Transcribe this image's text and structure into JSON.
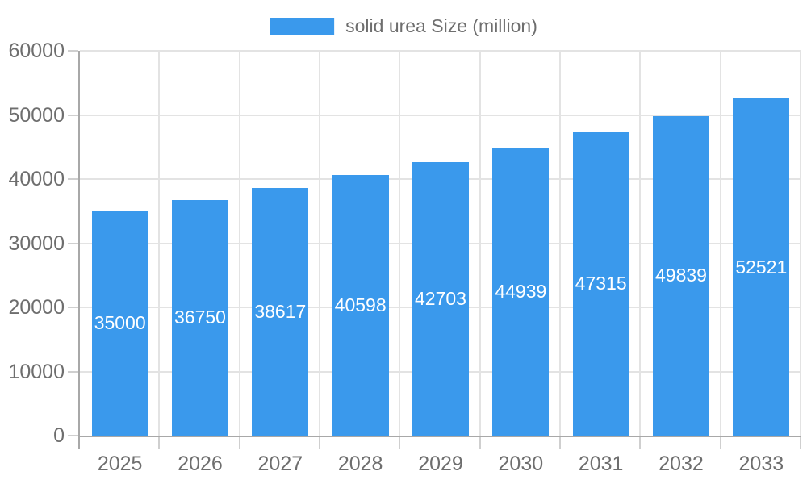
{
  "chart_data": {
    "type": "bar",
    "title": "",
    "categories": [
      "2025",
      "2026",
      "2027",
      "2028",
      "2029",
      "2030",
      "2031",
      "2032",
      "2033"
    ],
    "series": [
      {
        "name": "solid urea Size (million)",
        "values": [
          35000,
          36750,
          38617,
          40598,
          42703,
          44939,
          47315,
          49839,
          52521
        ]
      }
    ],
    "xlabel": "",
    "ylabel": "",
    "ylim": [
      0,
      60000
    ],
    "ytick_step": 10000,
    "yticks": [
      0,
      10000,
      20000,
      30000,
      40000,
      50000,
      60000
    ],
    "grid": true,
    "legend_position": "top",
    "value_label_position": "inside-center"
  },
  "colors": {
    "bar": "#3A99EC",
    "value_label": "#ffffff",
    "grid_line": "#e3e3e3",
    "axis_line": "#a8a8a8",
    "tick_mark": "#cfcfcf",
    "axis_label": "#6e6e6e",
    "background": "#ffffff"
  }
}
